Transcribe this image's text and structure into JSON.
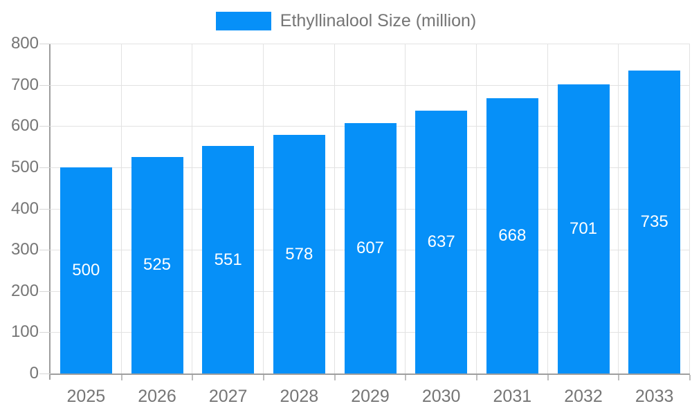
{
  "legend": {
    "label": "Ethyllinalool Size (million)"
  },
  "colors": {
    "bar": "#0690f8",
    "grid": "#e2e2e2",
    "axis_line": "#9e9e9e",
    "tick": "#d6d6d6",
    "xtick": "#bdbdbd",
    "axis_text": "#757575",
    "bar_label_text": "#ffffff",
    "background": "#ffffff"
  },
  "chart_data": {
    "type": "bar",
    "title": "Ethyllinalool Size (million)",
    "series": [
      {
        "name": "Ethyllinalool Size (million)",
        "values": [
          500,
          525,
          551,
          578,
          607,
          637,
          668,
          701,
          735
        ]
      }
    ],
    "categories": [
      "2025",
      "2026",
      "2027",
      "2028",
      "2029",
      "2030",
      "2031",
      "2032",
      "2033"
    ],
    "xlabel": "",
    "ylabel": "",
    "ylim": [
      0,
      800
    ],
    "ytick_step": 100,
    "grid": true,
    "legend_position": "top",
    "bar_value_labels": "centered-inside-white"
  }
}
